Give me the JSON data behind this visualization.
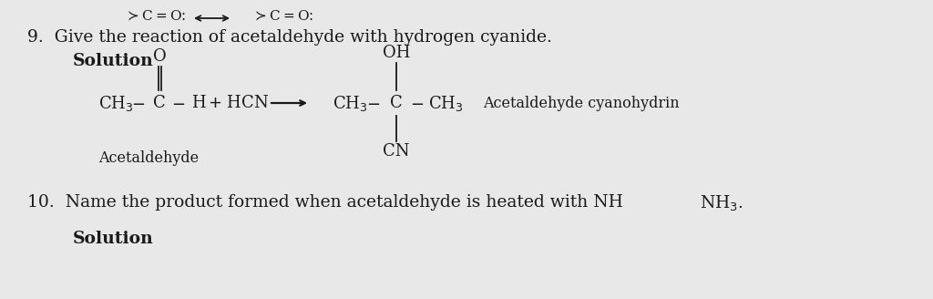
{
  "bg_color": "#e8e8e8",
  "text_color": "#1a1a1a",
  "title_line": "9.  Give the reaction of acetaldehyde with hydrogen cyanide.",
  "solution_label": "Solution",
  "acetaldehyde_label": "Acetaldehyde",
  "product_label": "Acetaldehyde cyanohydrin",
  "q10_line": "10.  Name the product formed when acetaldehyde is heated with NH",
  "solution2_label": "Solution",
  "fs_main": 13.5,
  "fs_chem": 13,
  "fs_small": 11.5
}
